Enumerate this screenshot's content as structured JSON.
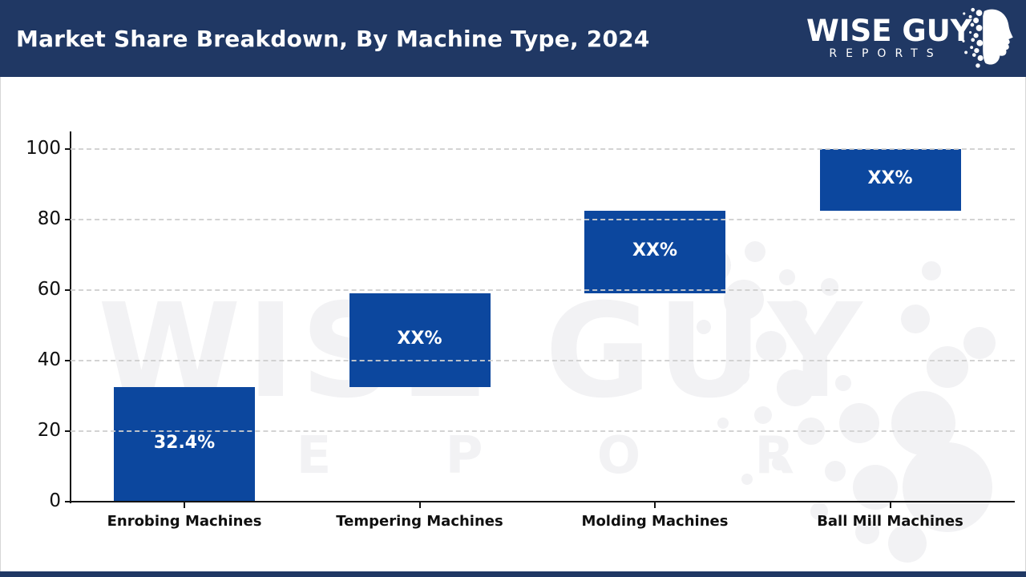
{
  "header": {
    "title": "Market Share Breakdown, By Machine Type, 2024",
    "logo": {
      "wordmark": "WISE GUY",
      "subtext": "REPORTS"
    }
  },
  "watermark": {
    "wordmark": "WISE GUY",
    "subtext": "R E P O R T S"
  },
  "colors": {
    "header_bg": "#203864",
    "footer_bg": "#203864",
    "bar_fill": "#0c479e",
    "bar_label": "#ffffff",
    "axis": "#141414",
    "tick_label": "#101010",
    "gridline": "#cfcfcf",
    "frame_border": "#d6d6d6",
    "watermark": "#f2f2f4",
    "background": "#ffffff"
  },
  "chart_data": {
    "type": "bar",
    "subtype": "waterfall",
    "title": "Market Share Breakdown, By Machine Type, 2024",
    "categories": [
      "Enrobing Machines",
      "Tempering Machines",
      "Molding Machines",
      "Ball Mill Machines"
    ],
    "segments": [
      {
        "category": "Enrobing Machines",
        "start": 0,
        "end": 32.4,
        "label": "32.4%"
      },
      {
        "category": "Tempering Machines",
        "start": 32.4,
        "end": 59,
        "label": "XX%"
      },
      {
        "category": "Molding Machines",
        "start": 59,
        "end": 82.5,
        "label": "XX%"
      },
      {
        "category": "Ball Mill Machines",
        "start": 82.5,
        "end": 100,
        "label": "XX%"
      }
    ],
    "xlabel": "",
    "ylabel": "",
    "unit": "%",
    "ylim": [
      0,
      105
    ],
    "yticks": [
      0,
      20,
      40,
      60,
      80,
      100
    ],
    "grid": "horizontal-dashed",
    "gridlines_over_bars": true,
    "legend": "none"
  }
}
